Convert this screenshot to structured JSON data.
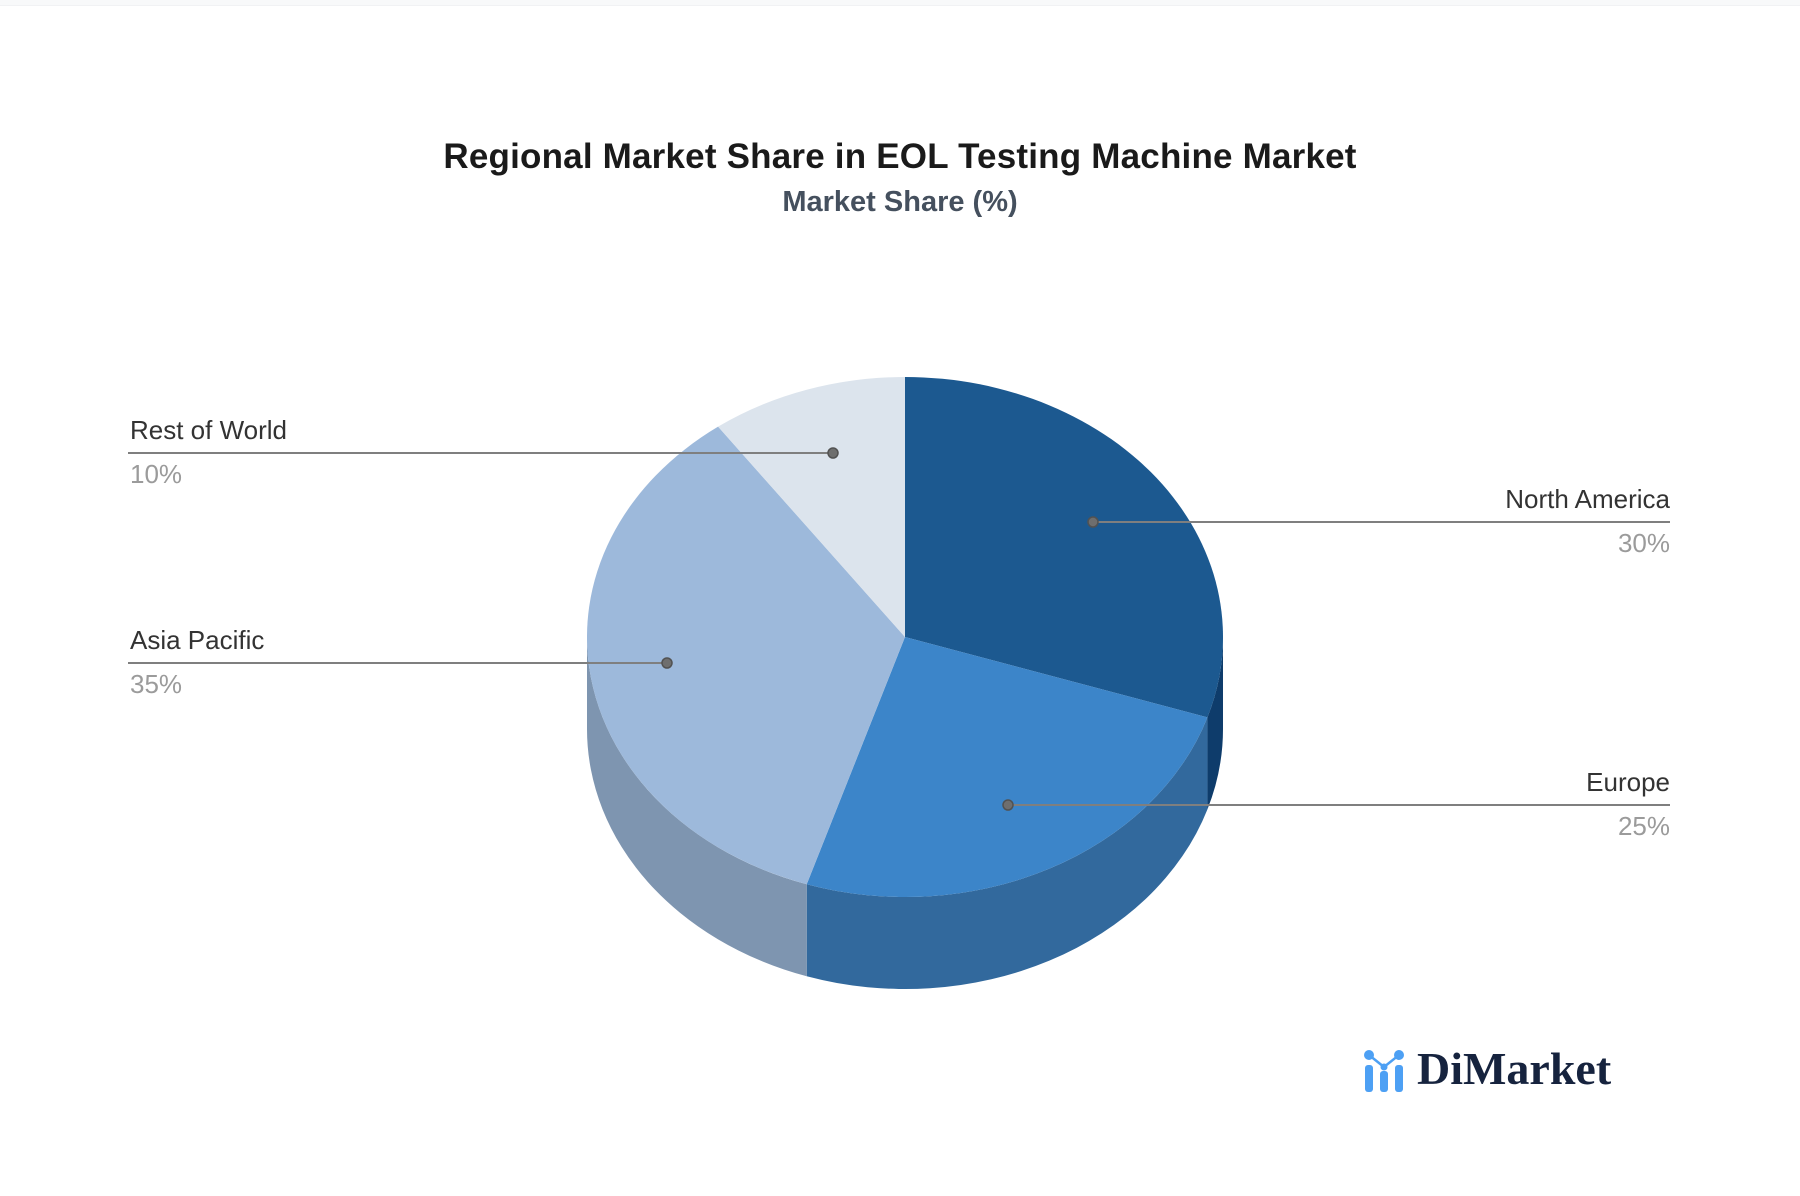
{
  "page": {
    "title": "Regional Market Share in EOL Testing Machine Market",
    "subtitle": "Market Share (%)"
  },
  "chart_data": {
    "type": "pie",
    "title": "Regional Market Share in EOL Testing Machine Market",
    "subtitle": "Market Share (%)",
    "unit": "%",
    "effect": "3d",
    "start_angle_deg": 0,
    "direction": "clockwise",
    "legend": "none",
    "background": "#ffffff",
    "slices": [
      {
        "label": "North America",
        "value": 30,
        "value_text": "30%",
        "color": "#1c5990",
        "side_color": "#0e3c6b"
      },
      {
        "label": "Europe",
        "value": 25,
        "value_text": "25%",
        "color": "#3c85c9",
        "side_color": "#32699d"
      },
      {
        "label": "Asia Pacific",
        "value": 35,
        "value_text": "35%",
        "color": "#9db9db",
        "side_color": "#7e95b0"
      },
      {
        "label": "Rest of World",
        "value": 10,
        "value_text": "10%",
        "color": "#dce4ed"
      }
    ]
  },
  "annotation_style": {
    "label_color": "#333333",
    "value_color": "#9b9b9b",
    "leader_line_color": "#7f7f7f",
    "leader_dot_color": "#6e6e6e"
  },
  "title_style": {
    "title_color": "#1a1a1a",
    "subtitle_color": "#45505e"
  },
  "logo": {
    "text": "DiMarket",
    "text_color": "#16233e",
    "icon": "bar-line-chart-icon",
    "icon_color": "#4da0f4"
  }
}
